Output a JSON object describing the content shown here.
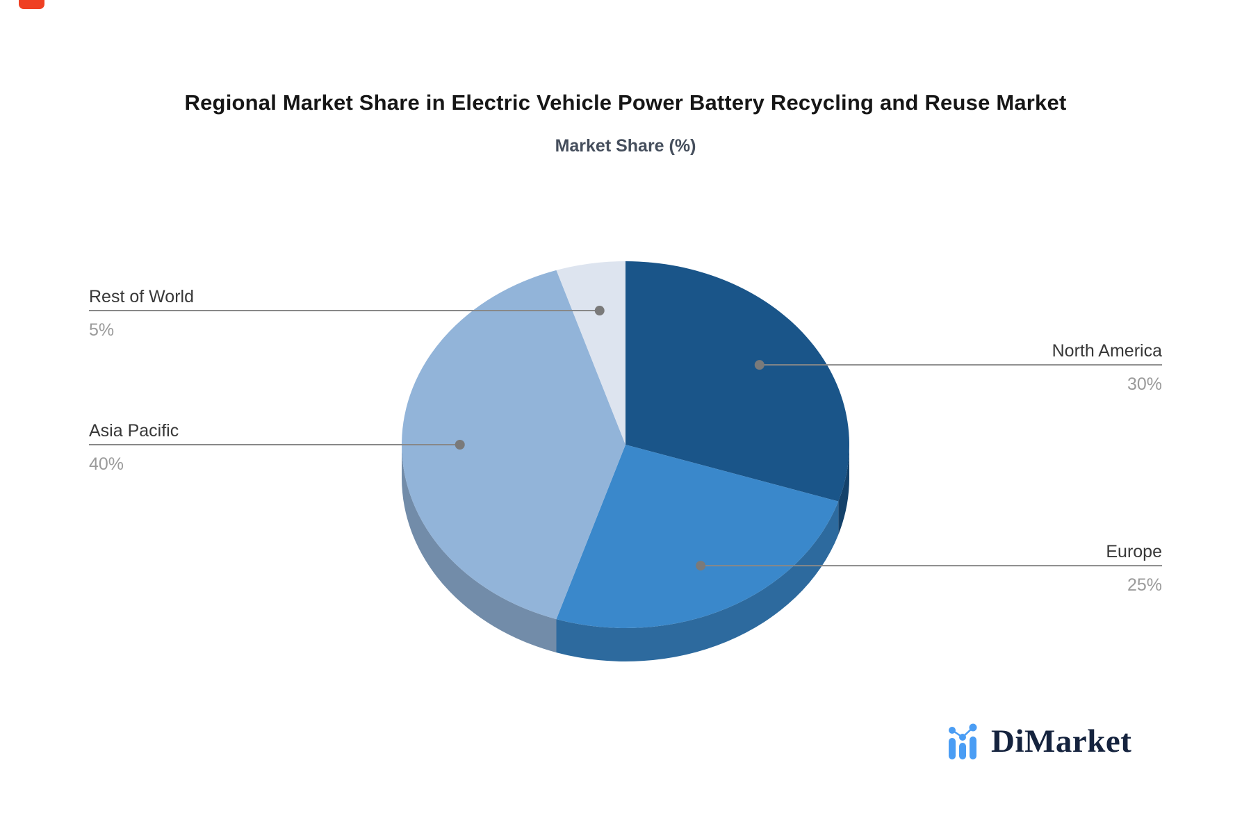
{
  "chart_data": {
    "type": "pie",
    "effect": "3d",
    "title": "Regional Market Share in Electric Vehicle Power Battery Recycling and Reuse Market",
    "subtitle": "Market Share (%)",
    "unit": "%",
    "start_angle": "12-oclock-clockwise",
    "segments": [
      {
        "label": "North America",
        "value": 30,
        "value_label": "30%",
        "color": "#1a5589",
        "label_side": "right"
      },
      {
        "label": "Europe",
        "value": 25,
        "value_label": "25%",
        "color": "#3a88cb",
        "label_side": "right"
      },
      {
        "label": "Asia Pacific",
        "value": 40,
        "value_label": "40%",
        "color": "#92b4d9",
        "label_side": "left"
      },
      {
        "label": "Rest of World",
        "value": 5,
        "value_label": "5%",
        "color": "#dde4ef",
        "label_side": "left"
      }
    ],
    "leader_line_color": "#888888",
    "leader_dot_color": "#7a7a7a",
    "label_name_color": "#383838",
    "label_value_color": "#9b9b9b"
  },
  "branding": {
    "logo_text": "DiMarket",
    "logo_icon": "bar-line-chart-icon",
    "logo_icon_color": "#4a9df4",
    "logo_text_color": "#15233e"
  }
}
